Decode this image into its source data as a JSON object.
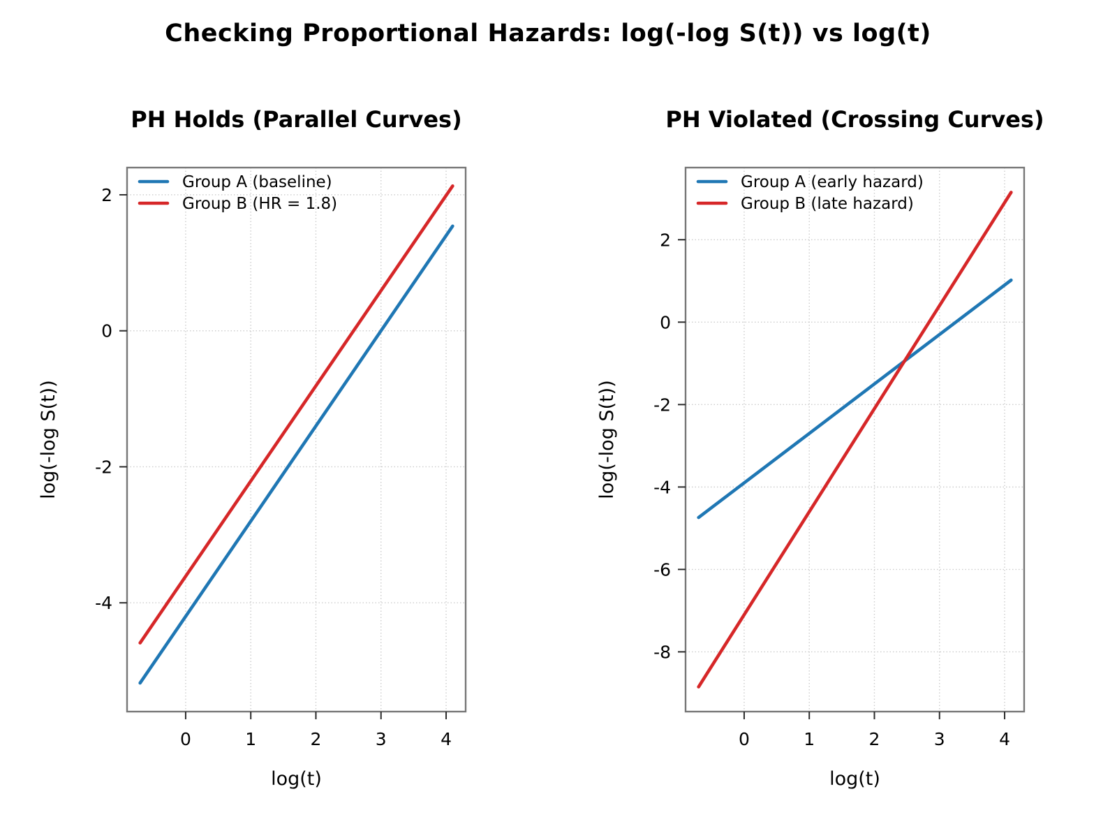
{
  "figure": {
    "title": "Checking Proportional Hazards: log(-log S(t)) vs log(t)"
  },
  "style": {
    "background": "#ffffff",
    "text_color": "#000000",
    "spine_color": "#767676",
    "grid_color": "#cccccc",
    "tick_color": "#2b2b2b",
    "group_a_color": "#1f77b4",
    "group_b_color": "#d62728"
  },
  "chart_data": [
    {
      "type": "line",
      "title": "PH Holds (Parallel Curves)",
      "xlabel": "log(t)",
      "ylabel": "log(-log S(t))",
      "xlim": [
        -0.9,
        4.3
      ],
      "ylim": [
        -5.6,
        2.4
      ],
      "xticks": [
        0,
        1,
        2,
        3,
        4
      ],
      "yticks": [
        2,
        0,
        -2,
        -4
      ],
      "grid": true,
      "legend_position": "upper left",
      "legend_frame": false,
      "series": [
        {
          "name": "Group A (baseline)",
          "color": "#1f77b4",
          "x": [
            -0.7,
            4.1
          ],
          "y": [
            -5.18,
            1.54
          ]
        },
        {
          "name": "Group B (HR = 1.8)",
          "color": "#d62728",
          "x": [
            -0.7,
            4.1
          ],
          "y": [
            -4.59,
            2.13
          ]
        }
      ]
    },
    {
      "type": "line",
      "title": "PH Violated (Crossing Curves)",
      "xlabel": "log(t)",
      "ylabel": "log(-log S(t))",
      "xlim": [
        -0.9,
        4.3
      ],
      "ylim": [
        -9.45,
        3.75
      ],
      "xticks": [
        0,
        1,
        2,
        3,
        4
      ],
      "yticks": [
        2,
        0,
        -2,
        -4,
        -6,
        -8
      ],
      "grid": true,
      "legend_position": "upper left",
      "legend_frame": false,
      "series": [
        {
          "name": "Group A (early hazard)",
          "color": "#1f77b4",
          "x": [
            -0.7,
            4.1
          ],
          "y": [
            -4.74,
            1.02
          ]
        },
        {
          "name": "Group B (late hazard)",
          "color": "#d62728",
          "x": [
            -0.7,
            4.1
          ],
          "y": [
            -8.85,
            3.15
          ]
        }
      ]
    }
  ]
}
